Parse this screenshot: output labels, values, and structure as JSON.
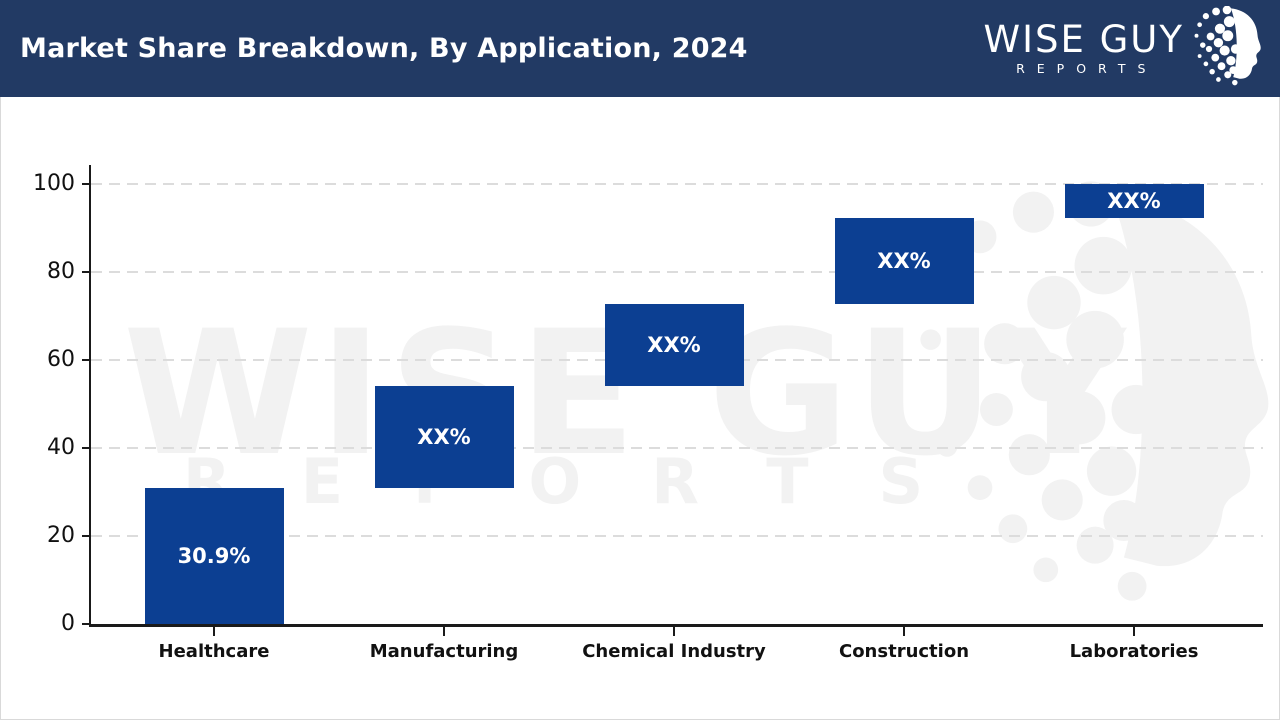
{
  "header": {
    "title": "Market Share Breakdown, By Application, 2024",
    "logo": {
      "line1": "WISE GUY",
      "line2": "REPORTS"
    }
  },
  "watermark": {
    "line1": "WISE GUY",
    "line2": "REPORTS"
  },
  "colors": {
    "header_bg": "#223a64",
    "bar": "#0c3f92",
    "bar_label": "#ffffff",
    "axis": "#1a1a1a",
    "grid": "#dcdcdc",
    "watermark": "#f2f2f2"
  },
  "chart_data": {
    "type": "bar",
    "variant": "floating-waterfall",
    "title": "Market Share Breakdown, By Application, 2024",
    "xlabel": "",
    "ylabel": "",
    "categories": [
      "Healthcare",
      "Manufacturing",
      "Chemical Industry",
      "Construction",
      "Laboratories"
    ],
    "segments": [
      {
        "category": "Healthcare",
        "start": 0,
        "end": 30.9,
        "label": "30.9%"
      },
      {
        "category": "Manufacturing",
        "start": 30.9,
        "end": 54.1,
        "label": "XX%"
      },
      {
        "category": "Chemical Industry",
        "start": 54.1,
        "end": 72.8,
        "label": "XX%"
      },
      {
        "category": "Construction",
        "start": 72.8,
        "end": 92.2,
        "label": "XX%"
      },
      {
        "category": "Laboratories",
        "start": 92.2,
        "end": 100,
        "label": "XX%"
      }
    ],
    "yticks": [
      0,
      20,
      40,
      60,
      80,
      100
    ],
    "ylim": [
      0,
      105
    ],
    "grid": "horizontal-dashed",
    "legend": null
  }
}
